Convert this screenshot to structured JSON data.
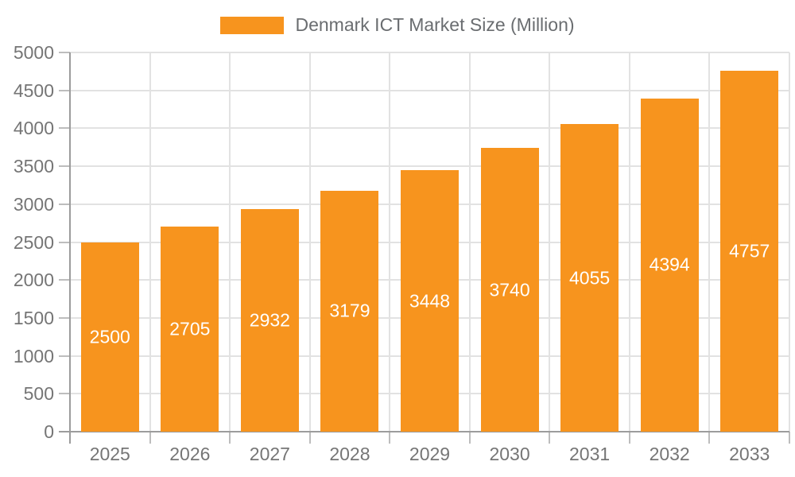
{
  "legend": {
    "label": "Denmark ICT Market Size (Million)"
  },
  "chart_data": {
    "type": "bar",
    "title": "Denmark ICT Market Size (Million)",
    "categories": [
      "2025",
      "2026",
      "2027",
      "2028",
      "2029",
      "2030",
      "2031",
      "2032",
      "2033"
    ],
    "series": [
      {
        "name": "Denmark ICT Market Size (Million)",
        "values": [
          2500,
          2705,
          2932,
          3179,
          3448,
          3740,
          4055,
          4394,
          4757
        ]
      }
    ],
    "xlabel": "",
    "ylabel": "",
    "ylim": [
      0,
      5000
    ],
    "y_tick_interval": 500,
    "y_ticks": [
      0,
      500,
      1000,
      1500,
      2000,
      2500,
      3000,
      3500,
      4000,
      4500,
      5000
    ],
    "grid": true,
    "legend_position": "top-center",
    "bar_value_labels": "inside-center",
    "colors": {
      "bar": "#f7941e",
      "grid": "#e2e2e2",
      "axis": "#9c9c9c",
      "tick": "#bdbdbd",
      "axis_text": "#757575",
      "legend_text": "#6a6d70",
      "value_text": "#ffffff",
      "background": "#ffffff"
    }
  }
}
